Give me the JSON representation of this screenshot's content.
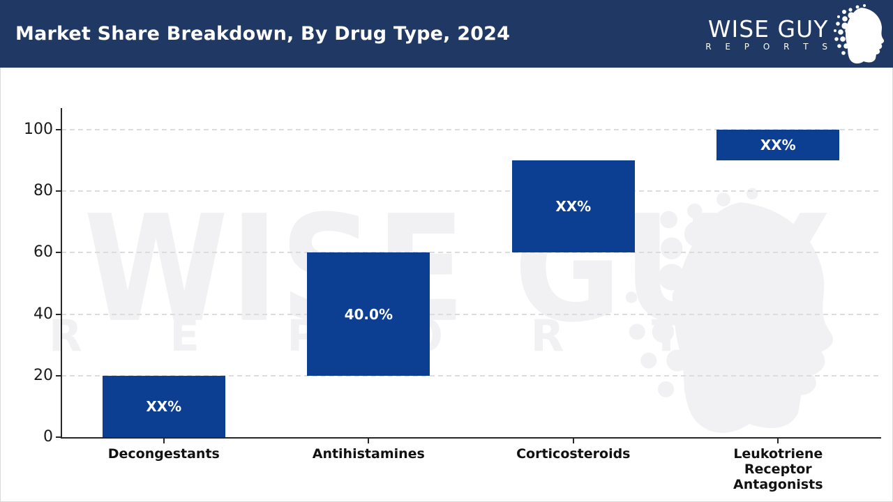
{
  "header": {
    "title": "Market Share Breakdown, By Drug Type, 2024",
    "logo": {
      "wordmark": "WISE GUY",
      "subtext": "R E P O R T S"
    }
  },
  "watermark": {
    "line1": "WISE GUY",
    "line2": "R E P O R T S"
  },
  "chart_data": {
    "type": "bar",
    "subtype": "waterfall",
    "title": "Market Share Breakdown, By Drug Type, 2024",
    "categories": [
      "Decongestants",
      "Antihistamines",
      "Corticosteroids",
      "Leukotriene Receptor Antagonists"
    ],
    "bar_labels": [
      "XX%",
      "40.0%",
      "XX%",
      "XX%"
    ],
    "values": [
      20,
      40,
      30,
      10
    ],
    "segments": [
      {
        "category": "Decongestants",
        "start": 0,
        "end": 20,
        "label": "XX%"
      },
      {
        "category": "Antihistamines",
        "start": 20,
        "end": 60,
        "label": "40.0%"
      },
      {
        "category": "Corticosteroids",
        "start": 60,
        "end": 90,
        "label": "XX%"
      },
      {
        "category": "Leukotriene Receptor Antagonists",
        "start": 90,
        "end": 100,
        "label": "XX%"
      }
    ],
    "yticks": [
      0,
      20,
      40,
      60,
      80,
      100
    ],
    "ylim": [
      0,
      107
    ],
    "xlabel": "",
    "ylabel": "",
    "legend": null,
    "grid": "dashed-horizontal",
    "bar_color": "#0c3e92",
    "bar_label_color": "#ffffff",
    "axis_color": "#262626",
    "gridline_color": "#dcdcdc",
    "header_bg_color": "#1f3864"
  }
}
